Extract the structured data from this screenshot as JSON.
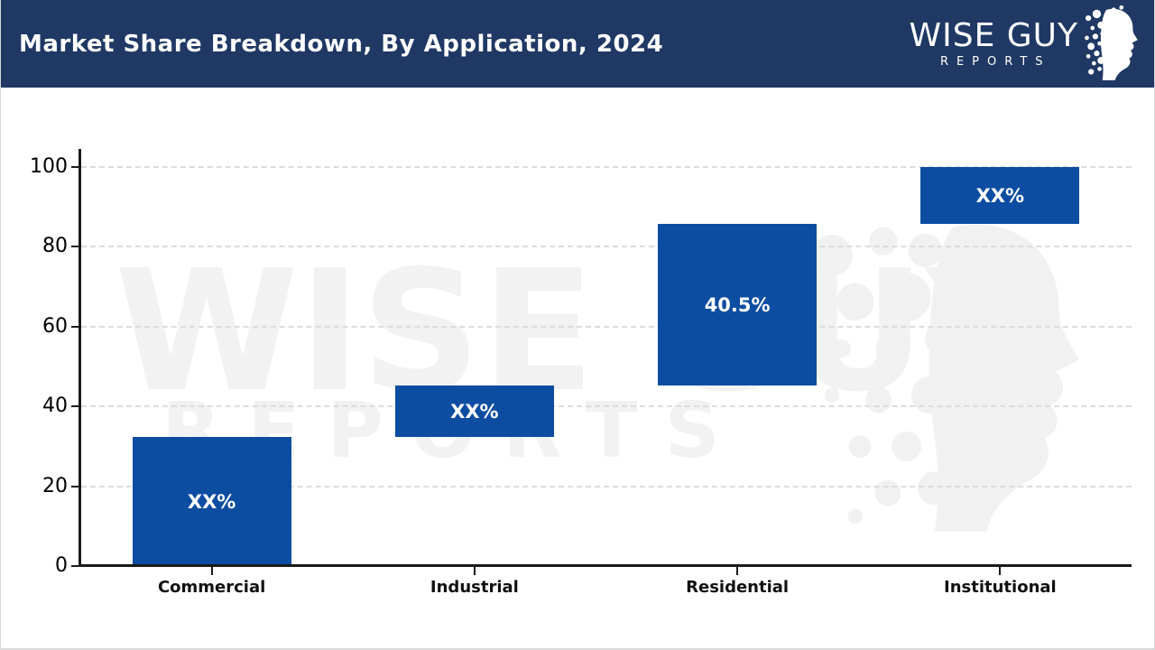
{
  "header": {
    "title": "Market Share Breakdown, By Application, 2024",
    "bg_color": "#1F3864",
    "logo": {
      "line1": "WISE GUY",
      "line2": "REPORTS"
    }
  },
  "watermark": {
    "line1": "WISE GUY",
    "line2": "REPORTS"
  },
  "chart_data": {
    "type": "bar",
    "subtype": "waterfall",
    "title": "Market Share Breakdown, By Application, 2024",
    "categories": [
      "Commercial",
      "Industrial",
      "Residential",
      "Institutional"
    ],
    "segments": [
      {
        "start": 0,
        "end": 32.3
      },
      {
        "start": 32.3,
        "end": 45.2
      },
      {
        "start": 45.2,
        "end": 85.7
      },
      {
        "start": 85.7,
        "end": 100
      }
    ],
    "values": [
      32.3,
      12.9,
      40.5,
      14.3
    ],
    "bar_labels": [
      "XX%",
      "XX%",
      "40.5%",
      "XX%"
    ],
    "xlabel": "",
    "ylabel": "",
    "ylim": [
      0,
      100
    ],
    "yticks": [
      0,
      20,
      40,
      60,
      80,
      100
    ],
    "grid": "horizontal-dashed",
    "bar_color": "#0D4DA1",
    "label_color": "#ffffff"
  }
}
